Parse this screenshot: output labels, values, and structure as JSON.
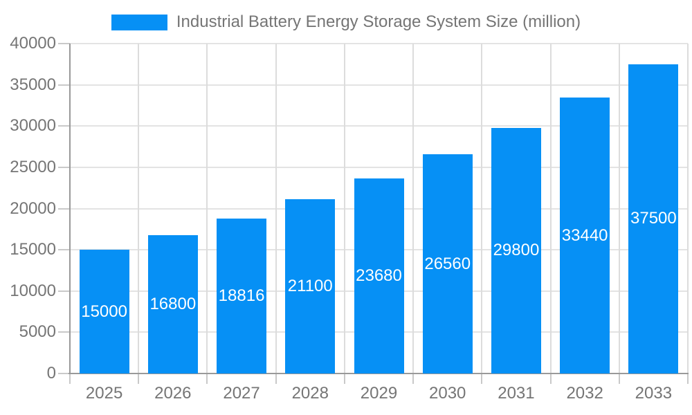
{
  "legend": {
    "label": "Industrial Battery Energy Storage System Size (million)"
  },
  "chart_data": {
    "type": "bar",
    "title": "Industrial Battery Energy Storage System Size (million)",
    "categories": [
      "2025",
      "2026",
      "2027",
      "2028",
      "2029",
      "2030",
      "2031",
      "2032",
      "2033"
    ],
    "values": [
      15000,
      16800,
      18816,
      21100,
      23680,
      26560,
      29800,
      33440,
      37500
    ],
    "bar_value_labels": [
      "15000",
      "16800",
      "18816",
      "21100",
      "23680",
      "26560",
      "29800",
      "33440",
      "37500"
    ],
    "xlabel": "",
    "ylabel": "",
    "ylim": [
      0,
      40000
    ],
    "y_ticks": [
      0,
      5000,
      10000,
      15000,
      20000,
      25000,
      30000,
      35000,
      40000
    ],
    "grid": true,
    "legend_position": "top-center",
    "colors": {
      "bar": "#0690f5",
      "bar_value_text": "#ffffff",
      "axis_text": "#757575",
      "axis_line": "#999999",
      "tick": "#c9c9c9",
      "gridline_h": "#e3e3e3",
      "gridline_v": "#dcdcdc",
      "background": "#ffffff"
    }
  }
}
